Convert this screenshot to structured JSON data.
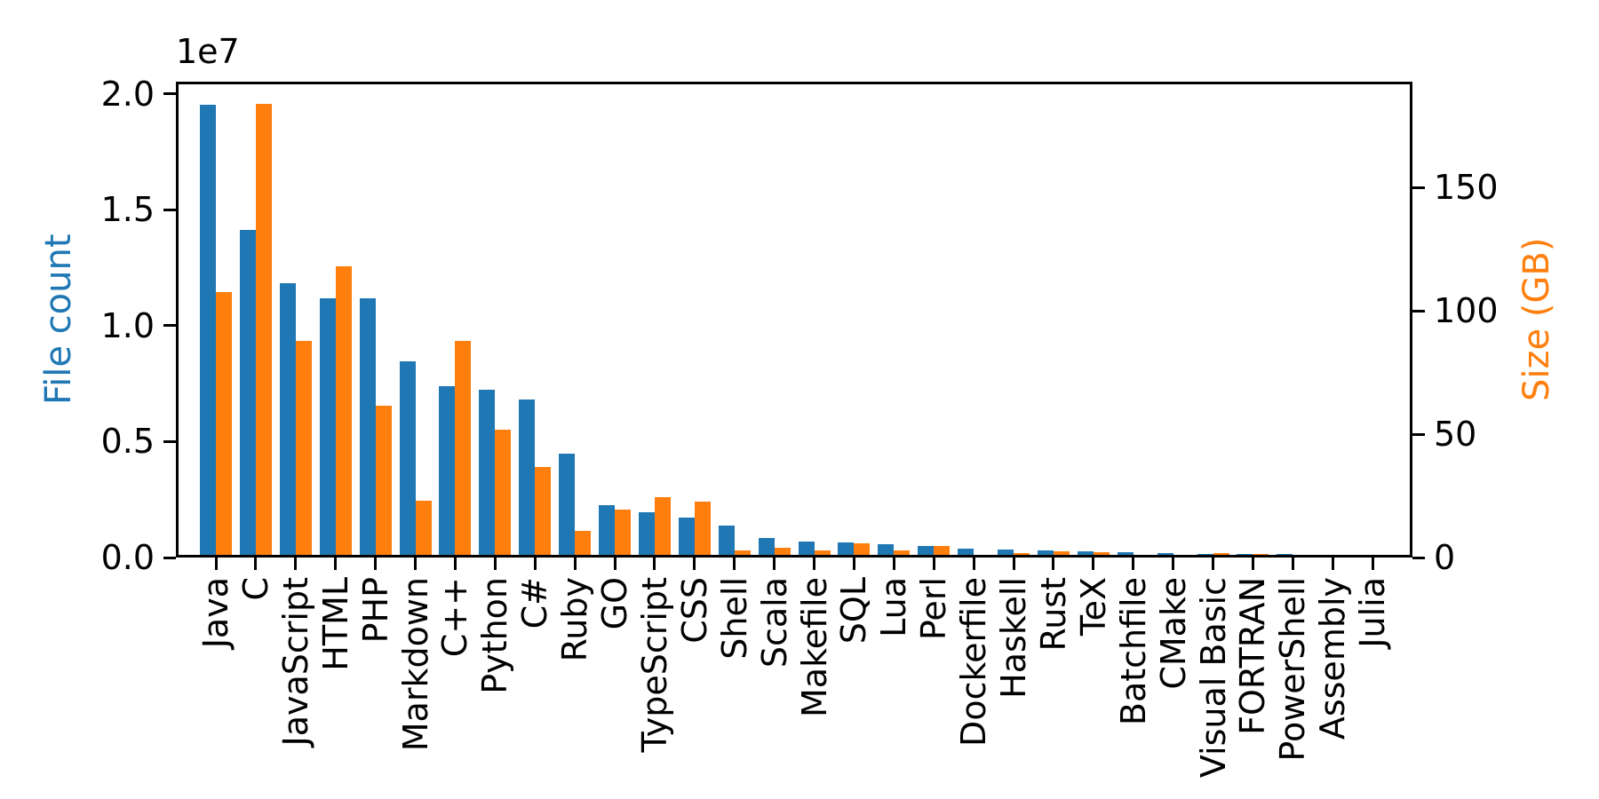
{
  "figure": {
    "offset_label": "1e7",
    "background": "#ffffff",
    "axis_color": "#000000",
    "left_axis": {
      "label": "File count",
      "label_color": "#1f77b4",
      "tick_labels": [
        "0.0",
        "0.5",
        "1.0",
        "1.5",
        "2.0"
      ],
      "tick_values": [
        0,
        5000000,
        10000000,
        15000000,
        20000000
      ]
    },
    "right_axis": {
      "label": "Size (GB)",
      "label_color": "#ff7f0e",
      "tick_labels": [
        "0",
        "50",
        "100",
        "150"
      ],
      "tick_values": [
        0,
        50,
        100,
        150
      ]
    }
  },
  "chart_data": {
    "type": "bar",
    "title": "",
    "xlabel": "",
    "ylabel_left": "File count",
    "ylabel_right": "Size (GB)",
    "grid": false,
    "legend": "none",
    "ylim_left": [
      0,
      20525600
    ],
    "ylim_right": [
      0,
      193
    ],
    "categories": [
      "Java",
      "C",
      "JavaScript",
      "HTML",
      "PHP",
      "Markdown",
      "C++",
      "Python",
      "C#",
      "Ruby",
      "GO",
      "TypeScript",
      "CSS",
      "Shell",
      "Scala",
      "Makefile",
      "SQL",
      "Lua",
      "Perl",
      "Dockerfile",
      "Haskell",
      "Rust",
      "TeX",
      "Batchfile",
      "CMake",
      "Visual Basic",
      "FORTRAN",
      "PowerShell",
      "Assembly",
      "Julia"
    ],
    "series": [
      {
        "name": "File count",
        "axis": "left",
        "color": "#1f77b4",
        "values": [
          19548190,
          14143113,
          11839883,
          11178557,
          11177610,
          8464626,
          7380520,
          7226626,
          6811652,
          4473331,
          2265436,
          1940406,
          1734406,
          1385648,
          835755,
          679430,
          656671,
          578554,
          497949,
          366505,
          340623,
          322431,
          251015,
          236945,
          175282,
          155652,
          142038,
          136846,
          82905,
          58317
        ]
      },
      {
        "name": "Size (GB)",
        "axis": "right",
        "color": "#ff7f0e",
        "values": [
          107.7,
          183.83,
          87.82,
          118.12,
          61.41,
          23.09,
          87.73,
          52.03,
          36.83,
          10.95,
          19.28,
          24.59,
          22.67,
          3.01,
          3.87,
          2.92,
          5.67,
          2.81,
          4.7,
          0.71,
          1.85,
          2.68,
          2.15,
          0.7,
          0.54,
          1.91,
          1.62,
          0.69,
          0.78,
          0.29
        ]
      }
    ]
  }
}
